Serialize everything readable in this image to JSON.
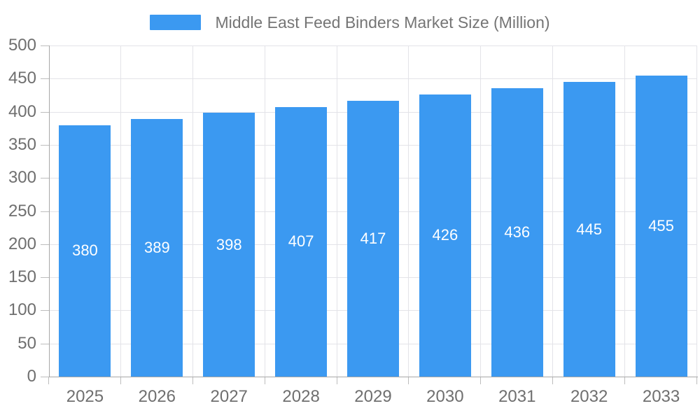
{
  "chart_data": {
    "type": "bar",
    "title": "",
    "legend_entries": [
      "Middle East Feed Binders Market Size (Million)"
    ],
    "legend_position": "top",
    "categories": [
      "2025",
      "2026",
      "2027",
      "2028",
      "2029",
      "2030",
      "2031",
      "2032",
      "2033"
    ],
    "series": [
      {
        "name": "Middle East Feed Binders Market Size (Million)",
        "values": [
          380,
          389,
          398,
          407,
          417,
          426,
          436,
          445,
          455
        ]
      }
    ],
    "xlabel": "",
    "ylabel": "",
    "ylim": [
      0,
      500
    ],
    "ytick_step": 50,
    "yticks": [
      "0",
      "50",
      "100",
      "150",
      "200",
      "250",
      "300",
      "350",
      "400",
      "450",
      "500"
    ],
    "grid": true,
    "bar_labels_shown": true,
    "bar_label_position": "inside-center",
    "colors": {
      "bar": "#3b99f1",
      "bar_value_text": "#ffffff",
      "axis_text": "#6f6f6f",
      "legend_text": "#757575",
      "grid_line": "#e3e3e8",
      "axis_line": "#a8a8a8",
      "tick_line": "#bdbdbd",
      "background": "#ffffff"
    }
  }
}
